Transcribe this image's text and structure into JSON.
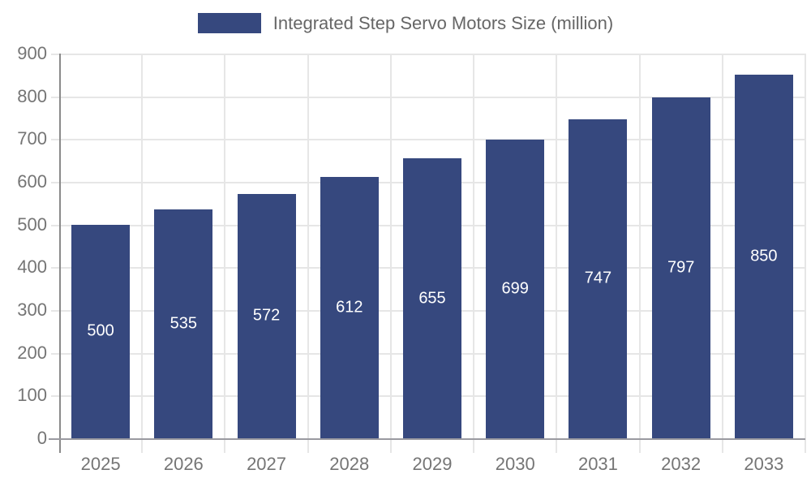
{
  "legend": {
    "label": "Integrated Step Servo Motors Size (million)"
  },
  "chart_data": {
    "type": "bar",
    "title": "Integrated Step Servo Motors Size (million)",
    "categories": [
      "2025",
      "2026",
      "2027",
      "2028",
      "2029",
      "2030",
      "2031",
      "2032",
      "2033"
    ],
    "values": [
      500,
      535,
      572,
      612,
      655,
      699,
      747,
      797,
      850
    ],
    "xlabel": "",
    "ylabel": "",
    "ylim": [
      0,
      900
    ],
    "ytick_step": 100,
    "yticks": [
      0,
      100,
      200,
      300,
      400,
      500,
      600,
      700,
      800,
      900
    ],
    "grid": true,
    "legend_position": "top-center",
    "bar_color": "#36487E",
    "value_label_color": "#ffffff",
    "axis_text_color": "#757575",
    "grid_color": "#e6e6e6"
  }
}
